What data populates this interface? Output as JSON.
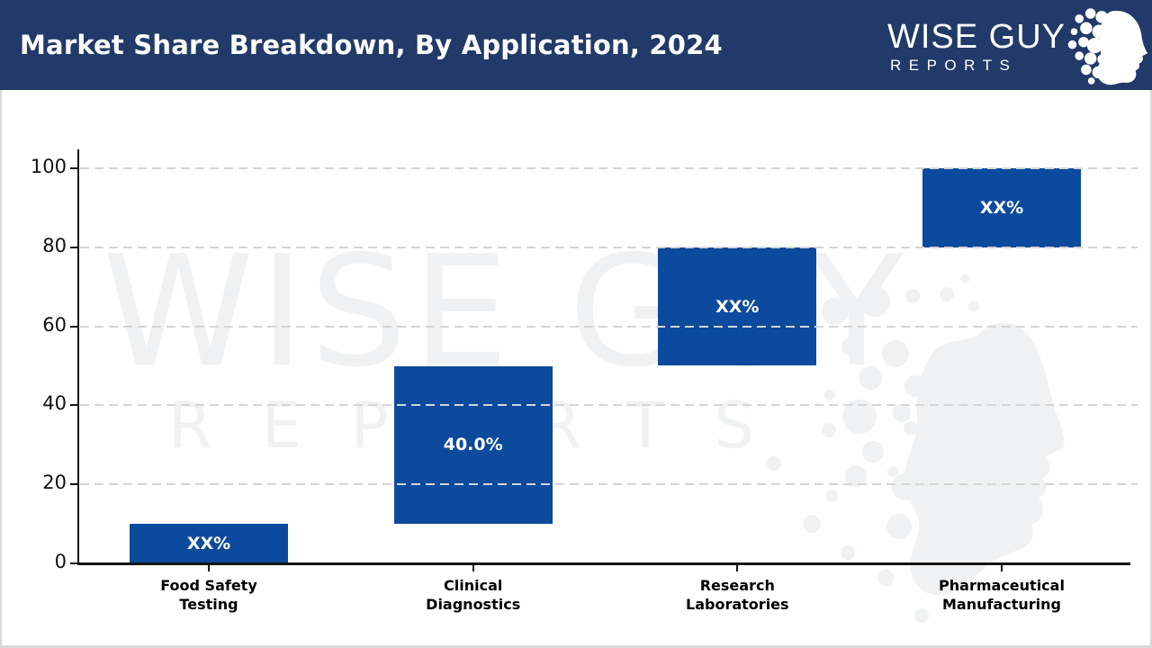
{
  "header": {
    "title": "Market Share Breakdown, By Application, 2024"
  },
  "logo": {
    "name": "WISE GUY",
    "subtitle": "REPORTS"
  },
  "watermark": {
    "line1": "WISE GUY",
    "line2": "REPORTS"
  },
  "chart_data": {
    "type": "bar",
    "subtype": "waterfall",
    "title": "Market Share Breakdown, By Application, 2024",
    "categories": [
      "Food Safety Testing",
      "Clinical Diagnostics",
      "Research Laboratories",
      "Pharmaceutical Manufacturing"
    ],
    "category_label_lines": [
      [
        "Food Safety",
        "Testing"
      ],
      [
        "Clinical",
        "Diagnostics"
      ],
      [
        "Research",
        "Laboratories"
      ],
      [
        "Pharmaceutical",
        "Manufacturing"
      ]
    ],
    "segments": [
      {
        "category": "Food Safety Testing",
        "start": 0,
        "end": 10,
        "value": 10,
        "label": "XX%"
      },
      {
        "category": "Clinical Diagnostics",
        "start": 10,
        "end": 50,
        "value": 40,
        "label": "40.0%"
      },
      {
        "category": "Research Laboratories",
        "start": 50,
        "end": 80,
        "value": 30,
        "label": "XX%"
      },
      {
        "category": "Pharmaceutical Manufacturing",
        "start": 80,
        "end": 100,
        "value": 20,
        "label": "XX%"
      }
    ],
    "values": [
      10,
      40,
      30,
      20
    ],
    "bar_labels": [
      "XX%",
      "40.0%",
      "XX%",
      "XX%"
    ],
    "xlabel": "",
    "ylabel": "",
    "ylim": [
      0,
      105
    ],
    "yticks": [
      0,
      20,
      40,
      60,
      80,
      100
    ],
    "grid": "horizontal-dashed",
    "legend": "none",
    "colors": {
      "bar": "#0c4a9d",
      "grid": "#d5d5d5",
      "axis": "#141414",
      "value_label_text": "#ffffff"
    }
  },
  "colors": {
    "header_bg": "#213a69",
    "body_bg": "#ffffff",
    "watermark": "#f0f1f2",
    "border": "#d9d9d9"
  }
}
